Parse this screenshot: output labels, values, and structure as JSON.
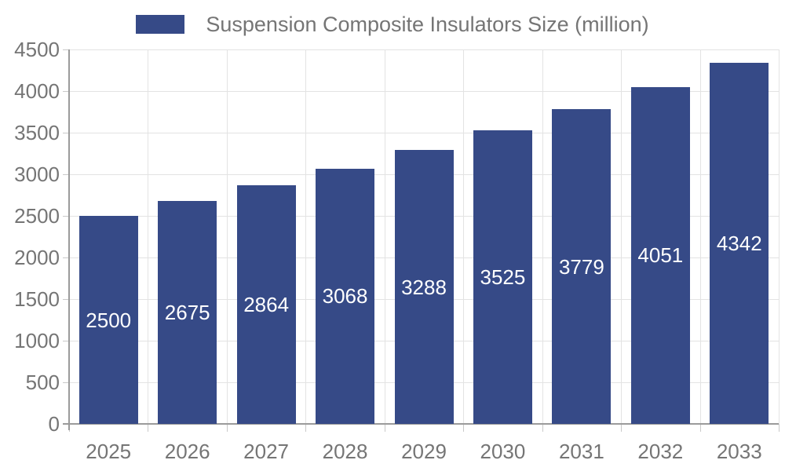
{
  "chart_data": {
    "type": "bar",
    "title": "Suspension Composite Insulators Size (million)",
    "legend": {
      "label": "Suspension Composite Insulators Size (million)",
      "position": "top-center"
    },
    "categories": [
      "2025",
      "2026",
      "2027",
      "2028",
      "2029",
      "2030",
      "2031",
      "2032",
      "2033"
    ],
    "values": [
      2500,
      2675,
      2864,
      3068,
      3288,
      3525,
      3779,
      4051,
      4342
    ],
    "series": [
      {
        "name": "Suspension Composite Insulators Size (million)",
        "values": [
          2500,
          2675,
          2864,
          3068,
          3288,
          3525,
          3779,
          4051,
          4342
        ]
      }
    ],
    "xlabel": "",
    "ylabel": "",
    "ylim": [
      0,
      4500
    ],
    "y_ticks": [
      0,
      500,
      1000,
      1500,
      2000,
      2500,
      3000,
      3500,
      4000,
      4500
    ],
    "grid": true,
    "value_labels": "inside-center-white",
    "colors": {
      "bar": "#364A87",
      "grid": "#e3e3e3",
      "axis": "#9b9b9b",
      "tick": "#c9c9c9",
      "text": "#757575",
      "value_text": "#ffffff",
      "background": "#ffffff"
    }
  }
}
